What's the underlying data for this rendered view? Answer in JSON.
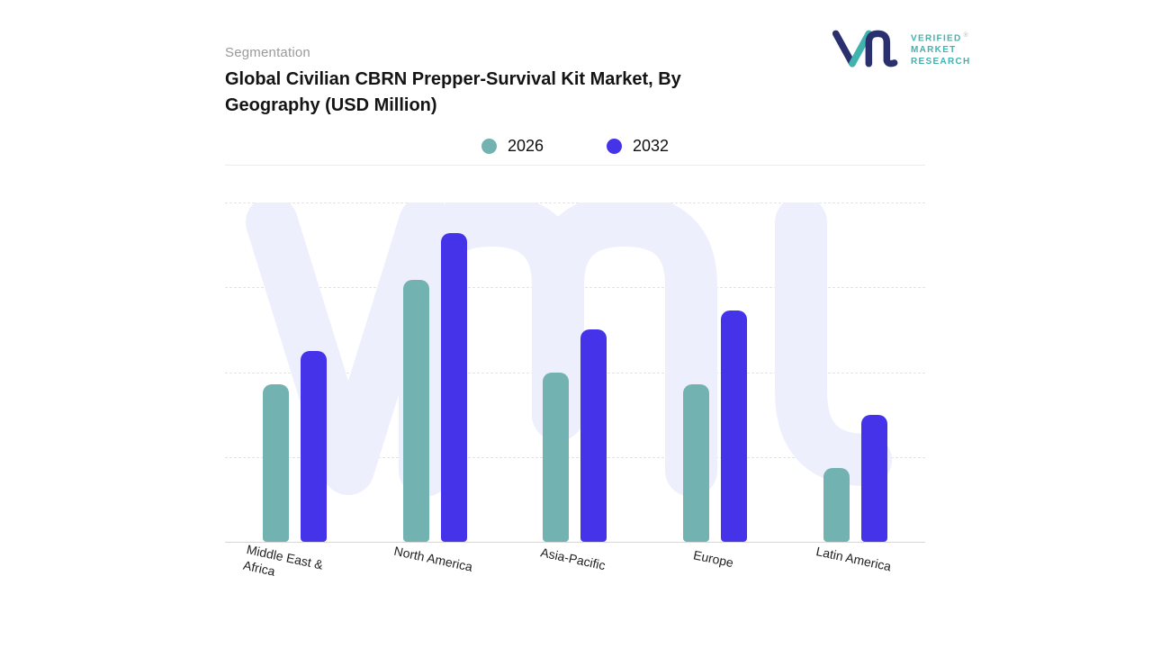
{
  "header": {
    "eyebrow": "Segmentation",
    "title_line1": "Global Civilian CBRN Prepper-Survival Kit Market, By",
    "title_line2": "Geography (USD Million)"
  },
  "logo": {
    "line1": "VERIFIED",
    "line2": "MARKET",
    "line3": "RESEARCH",
    "registered_mark": "®",
    "mark_navy": "#2a2f6e",
    "mark_teal": "#3fb3ae",
    "text_color": "#3fb3ae"
  },
  "chart_data": {
    "type": "bar",
    "title": "Global Civilian CBRN Prepper-Survival Kit Market, By Geography (USD Million)",
    "unit": "USD Million",
    "categories": [
      "Middle East & Africa",
      "North America",
      "Asia-Pacific",
      "Europe",
      "Latin America"
    ],
    "series": [
      {
        "name": "2026",
        "color": "#72b2b0",
        "values": [
          51,
          85,
          55,
          51,
          24
        ]
      },
      {
        "name": "2032",
        "color": "#4533e9",
        "values": [
          62,
          100,
          69,
          75,
          41
        ]
      }
    ],
    "ylim": [
      0,
      110
    ],
    "grid": "dashed-horizontal",
    "legend_position": "top-center",
    "watermark_color": "#edeffc"
  }
}
